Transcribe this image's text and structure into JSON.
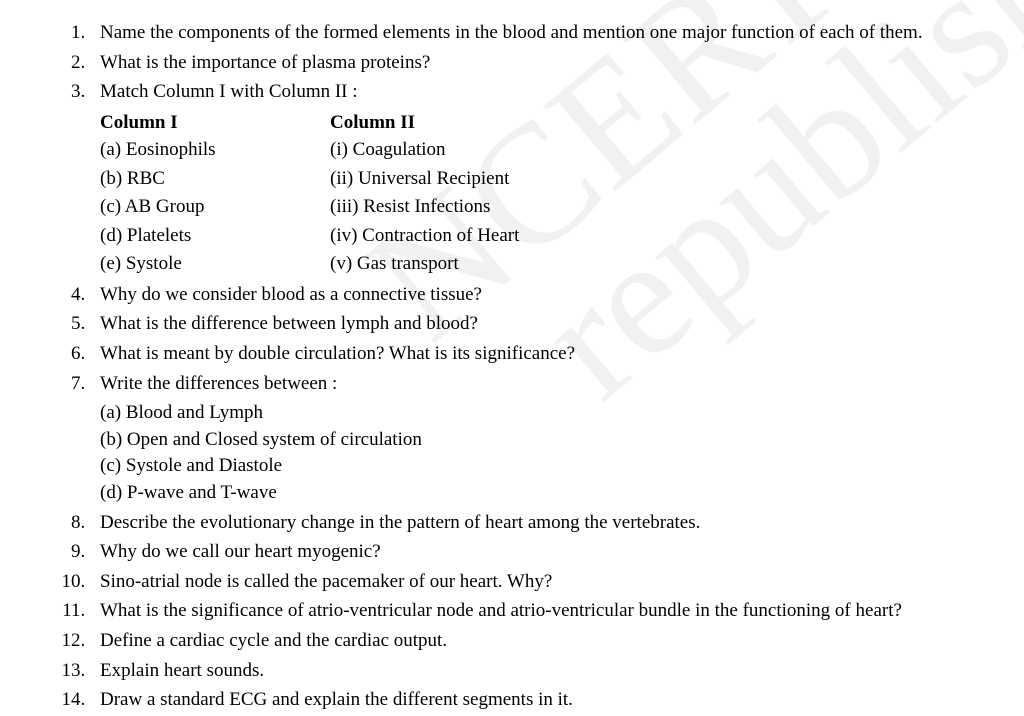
{
  "background_color": "#ffffff",
  "text_color": "#000000",
  "watermark_color": "#f1f1f1",
  "watermark1": "NCERT",
  "watermark2": "republish",
  "font_family": "Georgia, 'Times New Roman', serif",
  "body_fontsize": 19,
  "questions": {
    "q1": "Name the components of the formed elements in the blood and mention one major function of each of them.",
    "q2": "What is the importance of plasma proteins?",
    "q3": "Match Column I with Column II :",
    "q3_col1_header": "Column I",
    "q3_col2_header": "Column II",
    "q3_rows": {
      "r1_left": "(a) Eosinophils",
      "r1_right": "(i) Coagulation",
      "r2_left": "(b) RBC",
      "r2_right": "(ii) Universal Recipient",
      "r3_left": "(c) AB Group",
      "r3_right": "(iii) Resist Infections",
      "r4_left": "(d) Platelets",
      "r4_right": "(iv) Contraction of Heart",
      "r5_left": "(e) Systole",
      "r5_right": "(v) Gas transport"
    },
    "q4": "Why do we consider blood as a connective tissue?",
    "q5": "What is the difference between lymph and blood?",
    "q6": "What is meant by double circulation? What is its significance?",
    "q7": "Write the differences between :",
    "q7_sub": {
      "a": "(a) Blood and Lymph",
      "b": "(b) Open and Closed system of circulation",
      "c": "(c) Systole and Diastole",
      "d": "(d) P-wave and T-wave"
    },
    "q8": "Describe the evolutionary change in the pattern of heart among the vertebrates.",
    "q9": "Why do we call our heart myogenic?",
    "q10": "Sino-atrial node is called the pacemaker of our heart. Why?",
    "q11": "What is the significance of atrio-ventricular node and atrio-ventricular bundle in the functioning of heart?",
    "q12": "Define a cardiac cycle and the cardiac output.",
    "q13": "Explain heart sounds.",
    "q14": "Draw a standard ECG and explain the different segments in it."
  }
}
